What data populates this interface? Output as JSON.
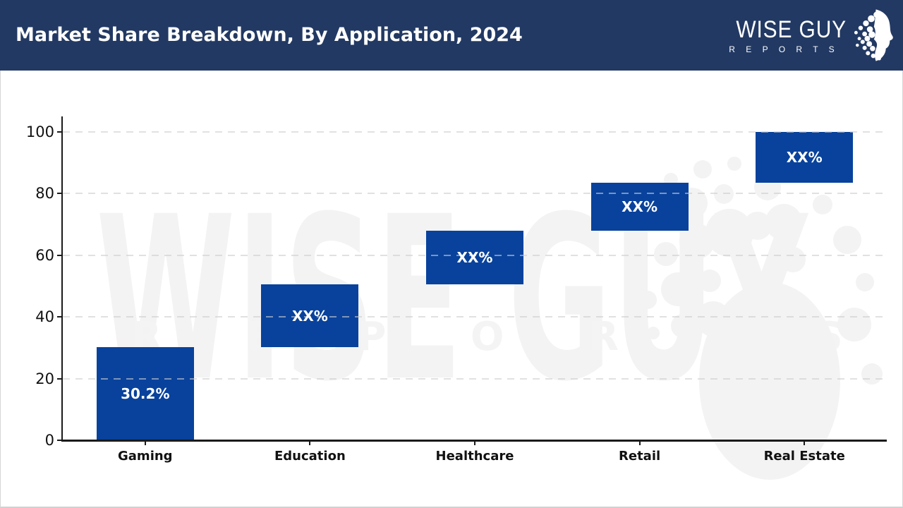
{
  "header": {
    "title": "Market Share Breakdown, By Application, 2024",
    "bg_color": "#223963",
    "logo": {
      "primary": "WISE GUY",
      "secondary": "R E P O R T S"
    }
  },
  "watermark": {
    "primary": "WISE GUY",
    "secondary": "R E P O R T S"
  },
  "chart_data": {
    "type": "bar",
    "subtype": "waterfall",
    "title": "Market Share Breakdown, By Application, 2024",
    "categories": [
      "Gaming",
      "Education",
      "Healthcare",
      "Retail",
      "Real Estate"
    ],
    "segments": [
      {
        "category": "Gaming",
        "start": 0,
        "end": 30.2,
        "value": 30.2,
        "label": "30.2%"
      },
      {
        "category": "Education",
        "start": 30.2,
        "end": 50.5,
        "value": 20.3,
        "label": "XX%"
      },
      {
        "category": "Healthcare",
        "start": 50.5,
        "end": 68.0,
        "value": 17.5,
        "label": "XX%"
      },
      {
        "category": "Retail",
        "start": 68.0,
        "end": 83.5,
        "value": 15.5,
        "label": "XX%"
      },
      {
        "category": "Real Estate",
        "start": 83.5,
        "end": 100,
        "value": 16.5,
        "label": "XX%"
      }
    ],
    "yticks": [
      0,
      20,
      40,
      60,
      80,
      100
    ],
    "ylim": [
      0,
      105
    ],
    "xlabel": "",
    "ylabel": "",
    "legend": null,
    "grid": true,
    "grid_style": "dashed",
    "bar_color": "#08429c",
    "bar_label_color": "#ffffff",
    "axis_color": "#1a1a1a"
  }
}
